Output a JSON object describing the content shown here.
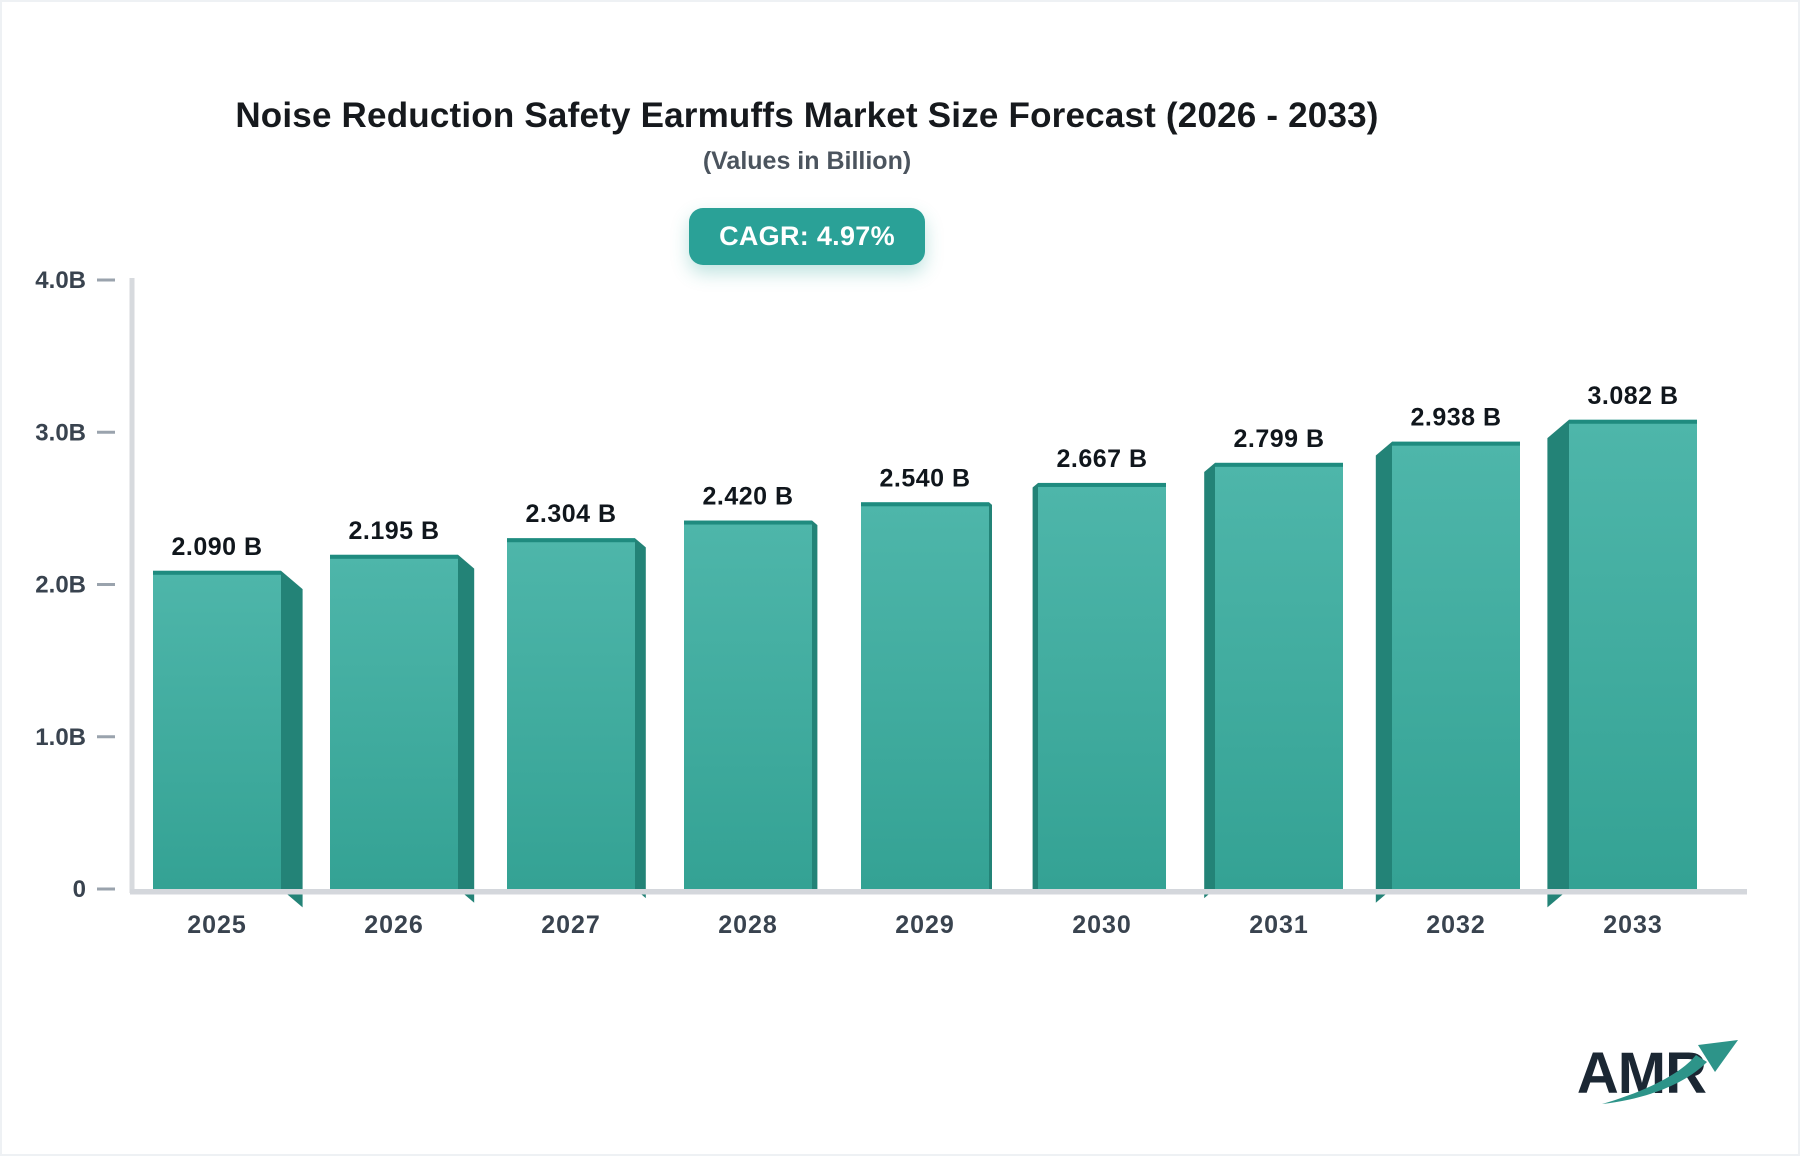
{
  "header": {
    "title": "Noise Reduction Safety Earmuffs Market Size Forecast (2026 - 2033)",
    "subtitle": "(Values in Billion)",
    "cagr_badge": "CAGR: 4.97%"
  },
  "logo": {
    "text": "AMR"
  },
  "chart_data": {
    "type": "bar",
    "title": "Noise Reduction Safety Earmuffs Market Size Forecast (2026 - 2033)",
    "subtitle": "(Values in Billion)",
    "cagr_label": "CAGR: 4.97%",
    "unit": "Billion",
    "categories": [
      "2025",
      "2026",
      "2027",
      "2028",
      "2029",
      "2030",
      "2031",
      "2032",
      "2033"
    ],
    "values": [
      2.09,
      2.195,
      2.304,
      2.42,
      2.54,
      2.667,
      2.799,
      2.938,
      3.082
    ],
    "value_labels": [
      "2.090 B",
      "2.195 B",
      "2.304 B",
      "2.420 B",
      "2.540 B",
      "2.667 B",
      "2.799 B",
      "2.938 B",
      "3.082 B"
    ],
    "xlabel": "",
    "ylabel": "",
    "ylim": [
      0,
      4.0
    ],
    "yticks": [
      {
        "v": 0,
        "label": "0"
      },
      {
        "v": 1,
        "label": "1.0B"
      },
      {
        "v": 2,
        "label": "2.0B"
      },
      {
        "v": 3,
        "label": "3.0B"
      },
      {
        "v": 4,
        "label": "4.0B"
      }
    ],
    "grid": false,
    "legend": false,
    "bar_style": "3d",
    "colors": {
      "bar_face_top": "#4eb6aa",
      "bar_face_bottom": "#34a294",
      "bar_side": "#238377",
      "bar_top_edge": "#1f8b7f",
      "axis_line": "#d7dade",
      "baseline": "#d4d7dc",
      "tick_dash": "#9aa3ad",
      "tick_label": "#39434f",
      "value_label": "#10161c",
      "accent": "#2aa197",
      "logo_text": "#1b2733",
      "logo_arrow": "#2d9489"
    }
  }
}
